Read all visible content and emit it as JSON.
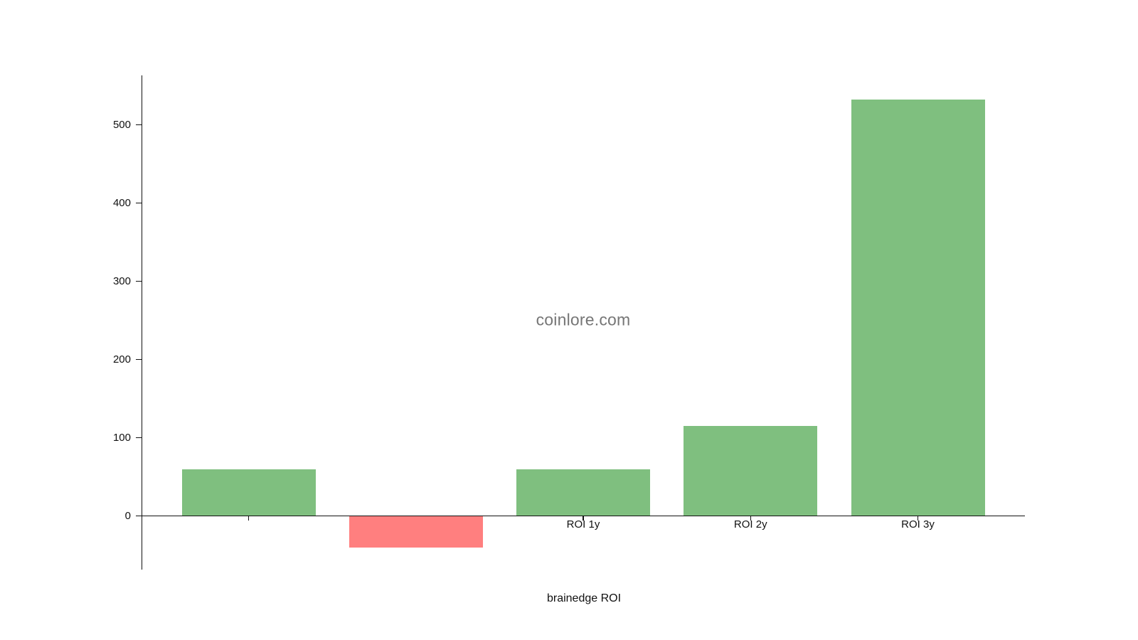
{
  "page": {
    "background": "#ffffff"
  },
  "watermark": {
    "text": "coinlore.com",
    "color": "#767676"
  },
  "chart_data": {
    "type": "bar",
    "title": "",
    "xlabel": "brainedge ROI",
    "ylabel": "",
    "categories": [
      "",
      "",
      "ROI 1y",
      "ROI 2y",
      "ROI 3y"
    ],
    "values": [
      60,
      -40,
      60,
      115,
      532
    ],
    "yticks": [
      0,
      100,
      200,
      300,
      400,
      500
    ],
    "ylim": [
      -68.5,
      563.2
    ],
    "grid": false,
    "legend": null,
    "colors": {
      "positive_bar": "#7fbf7f",
      "negative_bar": "#ff7f7f",
      "axis": "#111111",
      "tick_text": "#111111"
    }
  }
}
